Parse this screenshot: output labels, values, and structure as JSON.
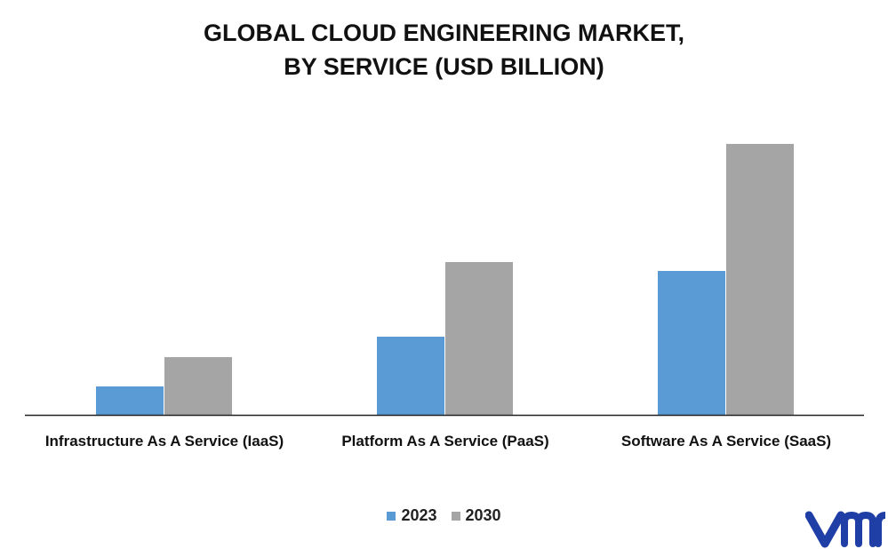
{
  "title": {
    "line1": "GLOBAL CLOUD ENGINEERING MARKET,",
    "line2": "BY SERVICE (USD BILLION)"
  },
  "chart_data": {
    "type": "bar",
    "categories": [
      "Infrastructure As A Service (IaaS)",
      "Platform As A Service (PaaS)",
      "Software As A Service (SaaS)"
    ],
    "series": [
      {
        "name": "2023",
        "values": [
          32,
          88,
          162
        ],
        "color": "#5b9bd5"
      },
      {
        "name": "2030",
        "values": [
          65,
          172,
          305
        ],
        "color": "#a5a5a5"
      }
    ],
    "ylim": [
      0,
      320
    ],
    "grid": false,
    "legend_position": "bottom"
  },
  "logo": {
    "icon": "vmr-logo-icon",
    "color": "#1f3fa6"
  }
}
